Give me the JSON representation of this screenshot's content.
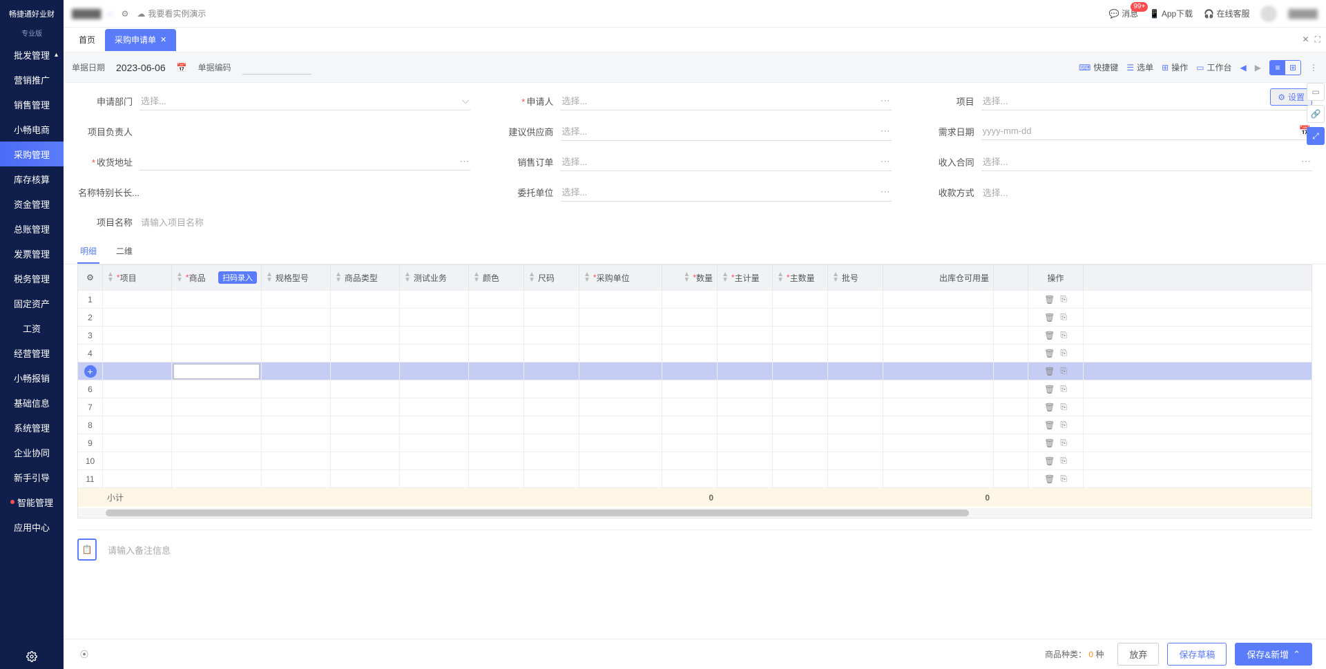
{
  "brand": {
    "name": "畅捷通好业财",
    "edition": "专业版"
  },
  "sidebar": {
    "items": [
      {
        "label": "批发管理",
        "expand": true
      },
      {
        "label": "营销推广"
      },
      {
        "label": "销售管理"
      },
      {
        "label": "小畅电商"
      },
      {
        "label": "采购管理",
        "active": true
      },
      {
        "label": "库存核算"
      },
      {
        "label": "资金管理"
      },
      {
        "label": "总账管理"
      },
      {
        "label": "发票管理"
      },
      {
        "label": "税务管理"
      },
      {
        "label": "固定资产"
      },
      {
        "label": "工资"
      },
      {
        "label": "经营管理"
      },
      {
        "label": "小畅报销"
      },
      {
        "label": "基础信息"
      },
      {
        "label": "系统管理"
      },
      {
        "label": "企业协同"
      },
      {
        "label": "新手引导"
      },
      {
        "label": "智能管理",
        "dot": true
      },
      {
        "label": "应用中心"
      }
    ]
  },
  "topbar": {
    "org": "█████",
    "demo": "我要看实例演示",
    "msg": "消息",
    "msg_count": "99+",
    "app": "App下载",
    "cs": "在线客服",
    "user": "█████"
  },
  "tabs": [
    {
      "label": "首页"
    },
    {
      "label": "采购申请单",
      "active": true,
      "closable": true
    }
  ],
  "toolbar": {
    "date_label": "单据日期",
    "date": "2023-06-06",
    "code_label": "单据编码",
    "shortcut": "快捷键",
    "select": "选单",
    "ops": "操作",
    "workbench": "工作台"
  },
  "form": {
    "fields": [
      [
        {
          "label": "申请部门",
          "ph": "选择...",
          "drop": true
        },
        {
          "label": "申请人",
          "req": true,
          "ph": "选择...",
          "more": true
        },
        {
          "label": "项目",
          "ph": "选择...",
          "more": true
        }
      ],
      [
        {
          "label": "项目负责人",
          "plain": true
        },
        {
          "label": "建议供应商",
          "ph": "选择...",
          "more": true
        },
        {
          "label": "需求日期",
          "ph": "yyyy-mm-dd",
          "cal": true
        }
      ],
      [
        {
          "label": "收货地址",
          "req": true,
          "ph": "",
          "more": true
        },
        {
          "label": "销售订单",
          "ph": "选择...",
          "more": true
        },
        {
          "label": "收入合同",
          "ph": "选择...",
          "more": true
        }
      ],
      [
        {
          "label": "名称特别长长...",
          "plain": true,
          "wide_label": true
        },
        {
          "label": "委托单位",
          "ph": "选择...",
          "more": true
        },
        {
          "label": "收款方式",
          "ph": "选择...",
          "noline": true
        }
      ],
      [
        {
          "label": "项目名称",
          "ph": "请输入项目名称",
          "noline": true
        }
      ]
    ],
    "settings": "设置"
  },
  "subtabs": [
    {
      "label": "明细",
      "active": true
    },
    {
      "label": "二维"
    }
  ],
  "table": {
    "columns": [
      {
        "key": "gear",
        "w": "c0"
      },
      {
        "key": "项目",
        "w": "c1",
        "sort": true,
        "req": true
      },
      {
        "key": "商品",
        "w": "c2",
        "sort": true,
        "req": true,
        "scan": "扫码录入"
      },
      {
        "key": "规格型号",
        "w": "c3",
        "sort": true
      },
      {
        "key": "商品类型",
        "w": "c4",
        "sort": true
      },
      {
        "key": "测试业务",
        "w": "c5",
        "sort": true
      },
      {
        "key": "颜色",
        "w": "c6",
        "sort": true
      },
      {
        "key": "尺码",
        "w": "c7",
        "sort": true
      },
      {
        "key": "采购单位",
        "w": "c8",
        "sort": true,
        "req": true
      },
      {
        "key": "数量",
        "w": "c9",
        "sort": true,
        "req": true,
        "right": true
      },
      {
        "key": "主计量",
        "w": "c10",
        "sort": true,
        "req": true
      },
      {
        "key": "主数量",
        "w": "c11",
        "sort": true,
        "req": true
      },
      {
        "key": "批号",
        "w": "c12",
        "sort": true
      },
      {
        "key": "出库仓可用量",
        "w": "c13",
        "right": true
      },
      {
        "key": "",
        "w": "c14"
      },
      {
        "key": "操作",
        "w": "cact",
        "center": true
      }
    ],
    "rows": 11,
    "highlight_row": 5,
    "subtotal_label": "小计",
    "subtotal_qty": "0",
    "subtotal_avail": "0"
  },
  "remarks": {
    "ph": "请输入备注信息"
  },
  "footer": {
    "kinds_label": "商品种类：",
    "kinds_val": "0",
    "kinds_unit": "种",
    "discard": "放弃",
    "draft": "保存草稿",
    "save": "保存&新增"
  },
  "colors": {
    "primary": "#5b7cfa",
    "sidebar": "#0f1e4a",
    "danger": "#ff4d4f",
    "subtotal_bg": "#fdf6e5",
    "highlight": "#c5cdf5"
  }
}
